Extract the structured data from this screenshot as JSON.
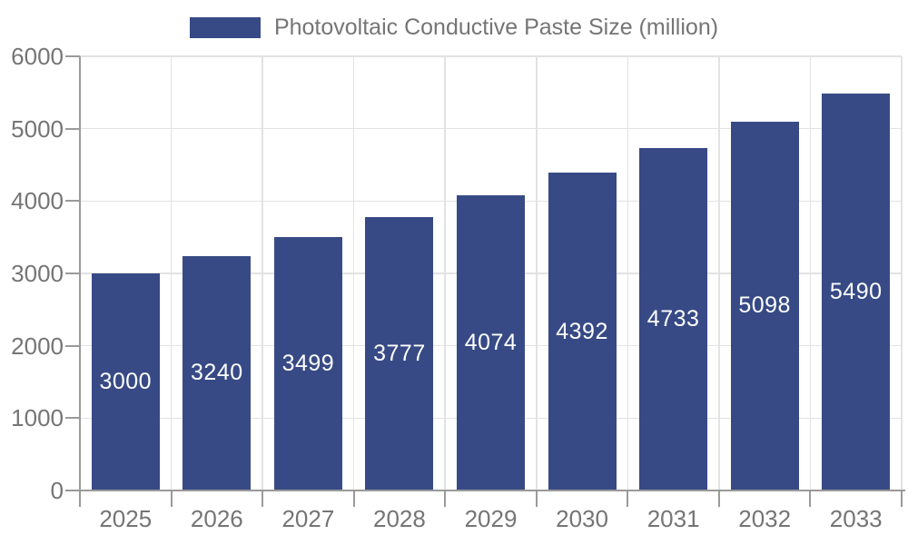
{
  "legend": {
    "label": "Photovoltaic Conductive Paste Size (million)"
  },
  "chart_data": {
    "type": "bar",
    "title": "Photovoltaic Conductive Paste Size (million)",
    "categories": [
      "2025",
      "2026",
      "2027",
      "2028",
      "2029",
      "2030",
      "2031",
      "2032",
      "2033"
    ],
    "values": [
      3000,
      3240,
      3499,
      3777,
      4074,
      4392,
      4733,
      5098,
      5490
    ],
    "xlabel": "",
    "ylabel": "",
    "ylim": [
      0,
      6000
    ],
    "yticks": [
      0,
      1000,
      2000,
      3000,
      4000,
      5000,
      6000
    ],
    "grid": true,
    "legend_position": "top-center",
    "bar_color": "#374a85",
    "value_label_color": "#ffffff",
    "axis_color": "#9a9a9a",
    "grid_color": "#e2e2e4",
    "tick_label_color": "#757575",
    "background_color": "#ffffff"
  }
}
